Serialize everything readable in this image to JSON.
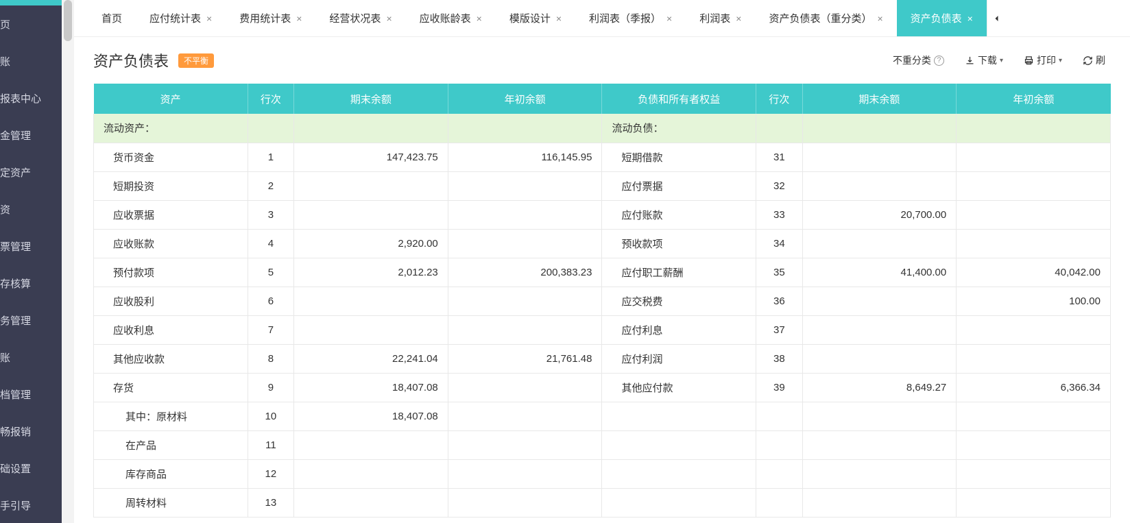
{
  "sidebar": {
    "items": [
      {
        "label": "页"
      },
      {
        "label": "账"
      },
      {
        "label": "报表中心"
      },
      {
        "label": "金管理"
      },
      {
        "label": "定资产"
      },
      {
        "label": "资"
      },
      {
        "label": "票管理"
      },
      {
        "label": "存核算"
      },
      {
        "label": "务管理"
      },
      {
        "label": "账"
      },
      {
        "label": "档管理"
      },
      {
        "label": "畅报销"
      },
      {
        "label": "础设置"
      },
      {
        "label": "手引导"
      }
    ]
  },
  "tabs": {
    "items": [
      {
        "label": "首页",
        "closable": false,
        "active": false
      },
      {
        "label": "应付统计表",
        "closable": true,
        "active": false
      },
      {
        "label": "费用统计表",
        "closable": true,
        "active": false
      },
      {
        "label": "经营状况表",
        "closable": true,
        "active": false
      },
      {
        "label": "应收账龄表",
        "closable": true,
        "active": false
      },
      {
        "label": "模版设计",
        "closable": true,
        "active": false
      },
      {
        "label": "利润表（季报）",
        "closable": true,
        "active": false
      },
      {
        "label": "利润表",
        "closable": true,
        "active": false
      },
      {
        "label": "资产负债表（重分类）",
        "closable": true,
        "active": false
      },
      {
        "label": "资产负债表",
        "closable": true,
        "active": true
      }
    ]
  },
  "page": {
    "title": "资产负债表",
    "badge": "不平衡",
    "actions": {
      "reclassify": "不重分类",
      "download": "下载",
      "print": "打印",
      "refresh": "刷"
    }
  },
  "table": {
    "headers": {
      "asset": "资产",
      "seq1": "行次",
      "end1": "期末余额",
      "begin1": "年初余额",
      "liab": "负债和所有者权益",
      "seq2": "行次",
      "end2": "期末余额",
      "begin2": "年初余额"
    },
    "rows": [
      {
        "type": "section",
        "asset": "流动资产：",
        "liab": "流动负债："
      },
      {
        "type": "data",
        "asset": "货币资金",
        "indent": 1,
        "seq1": "1",
        "end1": "147,423.75",
        "begin1": "116,145.95",
        "liab": "短期借款",
        "seq2": "31",
        "end2": "",
        "begin2": ""
      },
      {
        "type": "data",
        "asset": "短期投资",
        "indent": 1,
        "seq1": "2",
        "end1": "",
        "begin1": "",
        "liab": "应付票据",
        "seq2": "32",
        "end2": "",
        "begin2": ""
      },
      {
        "type": "data",
        "asset": "应收票据",
        "indent": 1,
        "seq1": "3",
        "end1": "",
        "begin1": "",
        "liab": "应付账款",
        "seq2": "33",
        "end2": "20,700.00",
        "begin2": ""
      },
      {
        "type": "data",
        "asset": "应收账款",
        "indent": 1,
        "seq1": "4",
        "end1": "2,920.00",
        "begin1": "",
        "liab": "预收款项",
        "seq2": "34",
        "end2": "",
        "begin2": ""
      },
      {
        "type": "data",
        "asset": "预付款项",
        "indent": 1,
        "seq1": "5",
        "end1": "2,012.23",
        "begin1": "200,383.23",
        "liab": "应付职工薪酬",
        "seq2": "35",
        "end2": "41,400.00",
        "begin2": "40,042.00"
      },
      {
        "type": "data",
        "asset": "应收股利",
        "indent": 1,
        "seq1": "6",
        "end1": "",
        "begin1": "",
        "liab": "应交税费",
        "seq2": "36",
        "end2": "",
        "begin2": "100.00"
      },
      {
        "type": "data",
        "asset": "应收利息",
        "indent": 1,
        "seq1": "7",
        "end1": "",
        "begin1": "",
        "liab": "应付利息",
        "seq2": "37",
        "end2": "",
        "begin2": ""
      },
      {
        "type": "data",
        "asset": "其他应收款",
        "indent": 1,
        "seq1": "8",
        "end1": "22,241.04",
        "begin1": "21,761.48",
        "liab": "应付利润",
        "seq2": "38",
        "end2": "",
        "begin2": ""
      },
      {
        "type": "data",
        "asset": "存货",
        "indent": 1,
        "seq1": "9",
        "end1": "18,407.08",
        "begin1": "",
        "liab": "其他应付款",
        "seq2": "39",
        "end2": "8,649.27",
        "begin2": "6,366.34"
      },
      {
        "type": "data",
        "asset": "其中：原材料",
        "indent": 2,
        "seq1": "10",
        "end1": "18,407.08",
        "begin1": "",
        "liab": "",
        "seq2": "",
        "end2": "",
        "begin2": ""
      },
      {
        "type": "data",
        "asset": "在产品",
        "indent": 2,
        "seq1": "11",
        "end1": "",
        "begin1": "",
        "liab": "",
        "seq2": "",
        "end2": "",
        "begin2": ""
      },
      {
        "type": "data",
        "asset": "库存商品",
        "indent": 2,
        "seq1": "12",
        "end1": "",
        "begin1": "",
        "liab": "",
        "seq2": "",
        "end2": "",
        "begin2": ""
      },
      {
        "type": "data",
        "asset": "周转材料",
        "indent": 2,
        "seq1": "13",
        "end1": "",
        "begin1": "",
        "liab": "",
        "seq2": "",
        "end2": "",
        "begin2": ""
      }
    ]
  },
  "colors": {
    "accent": "#3fc9c9",
    "sidebar_bg": "#3a3d52",
    "badge_bg": "#ff9a3c",
    "section_bg": "#e5f5d9",
    "border": "#e8e8e8"
  }
}
